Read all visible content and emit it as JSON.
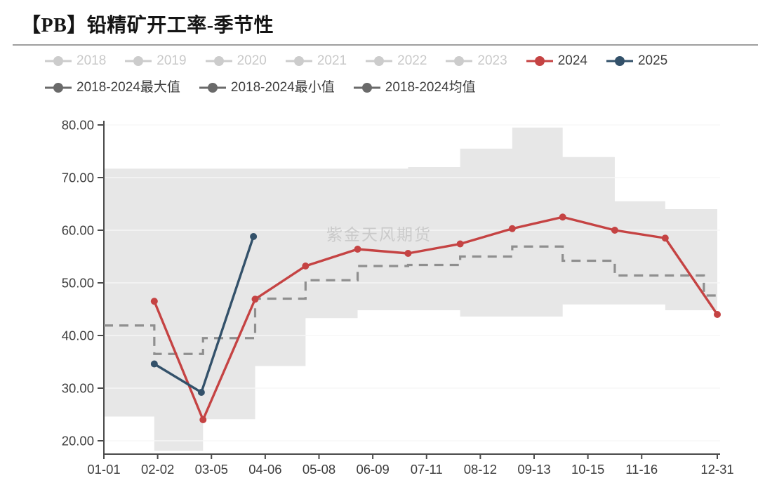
{
  "header": {
    "title": "【PB】铅精矿开工率-季节性"
  },
  "watermark": "紫金天风期货",
  "legend": {
    "rows": [
      {
        "items": [
          {
            "id": "2018",
            "label": "2018",
            "color": "#cccccc",
            "text_color": "#c9c9c9",
            "active": false
          },
          {
            "id": "2019",
            "label": "2019",
            "color": "#cccccc",
            "text_color": "#c9c9c9",
            "active": false
          },
          {
            "id": "2020",
            "label": "2020",
            "color": "#cccccc",
            "text_color": "#c9c9c9",
            "active": false
          },
          {
            "id": "2021",
            "label": "2021",
            "color": "#cccccc",
            "text_color": "#c9c9c9",
            "active": false
          },
          {
            "id": "2022",
            "label": "2022",
            "color": "#cccccc",
            "text_color": "#c9c9c9",
            "active": false
          },
          {
            "id": "2023",
            "label": "2023",
            "color": "#cccccc",
            "text_color": "#c9c9c9",
            "active": false
          },
          {
            "id": "2024",
            "label": "2024",
            "color": "#c54343",
            "text_color": "#3e3e3e",
            "active": true
          },
          {
            "id": "2025",
            "label": "2025",
            "color": "#33516a",
            "text_color": "#3e3e3e",
            "active": true
          }
        ]
      },
      {
        "items": [
          {
            "id": "2018-2024-max",
            "label": "2018-2024最大值",
            "color": "#6a6a6a",
            "text_color": "#3e3e3e",
            "active": true
          },
          {
            "id": "2018-2024-min",
            "label": "2018-2024最小值",
            "color": "#6a6a6a",
            "text_color": "#3e3e3e",
            "active": true
          },
          {
            "id": "2018-2024-mean",
            "label": "2018-2024均值",
            "color": "#6a6a6a",
            "text_color": "#3e3e3e",
            "active": true
          }
        ]
      }
    ]
  },
  "chart_data": {
    "type": "line",
    "title": "【PB】铅精矿开工率-季节性",
    "x_axis": {
      "kind": "day-of-year",
      "domain": [
        0,
        365
      ],
      "tick_days": [
        0,
        32,
        64,
        96,
        128,
        160,
        192,
        224,
        256,
        288,
        320,
        365
      ],
      "tick_labels": [
        "01-01",
        "02-02",
        "03-05",
        "04-06",
        "05-08",
        "06-09",
        "07-11",
        "08-12",
        "09-13",
        "10-15",
        "11-16",
        "12-31"
      ]
    },
    "y_axis": {
      "min": 20,
      "max": 80,
      "grid_values": [
        20,
        30,
        40,
        50,
        60,
        70,
        80
      ],
      "tick_labels": [
        "80.00",
        "70.00",
        "60.00",
        "50.00",
        "40.00",
        "30.00",
        "20.00"
      ]
    },
    "band": {
      "name": "2018-2024最大值-最小值区间",
      "color": "#e7e7e7",
      "boundary_days": [
        0,
        30,
        59,
        90,
        120,
        151,
        181,
        212,
        243,
        273,
        304,
        334,
        365
      ],
      "max_values": [
        71.7,
        71.7,
        71.7,
        71.7,
        71.7,
        71.7,
        72.0,
        75.5,
        79.5,
        73.9,
        65.5,
        64.0
      ],
      "min_values": [
        24.6,
        18.1,
        24.1,
        34.2,
        43.3,
        44.8,
        44.8,
        43.6,
        43.6,
        45.9,
        45.9,
        44.8
      ]
    },
    "series": [
      {
        "id": "mean-2018-2024",
        "name": "2018-2024均值",
        "color": "#8f8f8f",
        "style": "dashed-step",
        "markers": false,
        "boundary_days": [
          0,
          30,
          59,
          90,
          120,
          151,
          181,
          212,
          243,
          273,
          304,
          357,
          365
        ],
        "values": [
          41.9,
          36.5,
          39.5,
          47.0,
          50.5,
          53.2,
          53.4,
          55.0,
          56.9,
          54.2,
          51.4,
          47.6
        ]
      },
      {
        "id": "2024",
        "name": "2024",
        "color": "#c54343",
        "style": "solid",
        "markers": true,
        "days": [
          30,
          59,
          90,
          120,
          151,
          181,
          212,
          243,
          273,
          304,
          334,
          365
        ],
        "values": [
          46.5,
          24.0,
          46.9,
          53.2,
          56.4,
          55.6,
          57.4,
          60.3,
          62.5,
          60.0,
          58.5,
          44.0
        ]
      },
      {
        "id": "2025",
        "name": "2025",
        "color": "#33516a",
        "style": "solid",
        "markers": true,
        "days": [
          30,
          58,
          89
        ],
        "values": [
          34.6,
          29.2,
          58.8
        ]
      }
    ]
  }
}
